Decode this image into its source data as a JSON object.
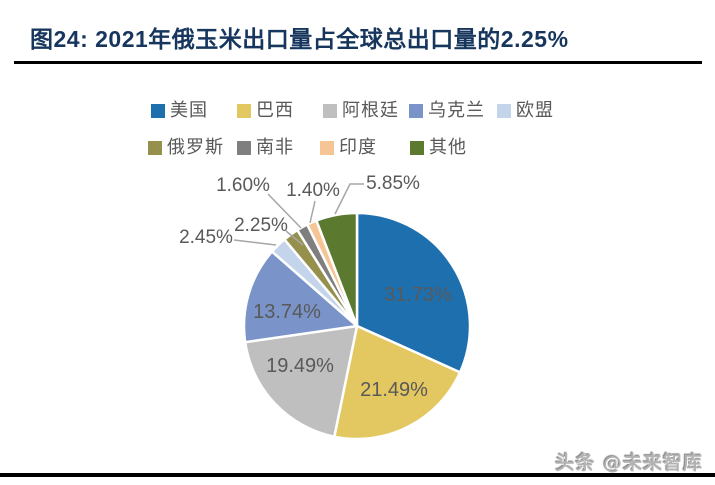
{
  "header": {
    "title": "图24: 2021年俄玉米出口量占全球总出口量的2.25%"
  },
  "watermark": {
    "text": "头条 @未来智库"
  },
  "chart_data": {
    "type": "pie",
    "title": "2021年俄玉米出口量占全球总出口量的2.25%",
    "unit": "%",
    "legend_position": "top",
    "legend_rows": 2,
    "labels": [
      "美国",
      "巴西",
      "阿根廷",
      "乌克兰",
      "欧盟",
      "俄罗斯",
      "南非",
      "印度",
      "其他"
    ],
    "values": [
      31.73,
      21.49,
      19.49,
      13.74,
      2.45,
      2.25,
      1.6,
      1.4,
      5.85
    ],
    "percent_labels": [
      "31.73%",
      "21.49%",
      "19.49%",
      "13.74%",
      "2.45%",
      "2.25%",
      "1.60%",
      "1.40%",
      "5.85%"
    ],
    "colors": [
      "#1E6FAE",
      "#E3C761",
      "#BFBFBF",
      "#7A94C9",
      "#C3D4EB",
      "#95914D",
      "#7F7F7F",
      "#F6C596",
      "#5B7A30"
    ],
    "label_color": "#595959",
    "leader_line_color": "#A6A6A6",
    "title_color": "#17365D",
    "slice_border_color": "#FFFFFF",
    "start_angle_deg": 0,
    "direction": "clockwise"
  }
}
